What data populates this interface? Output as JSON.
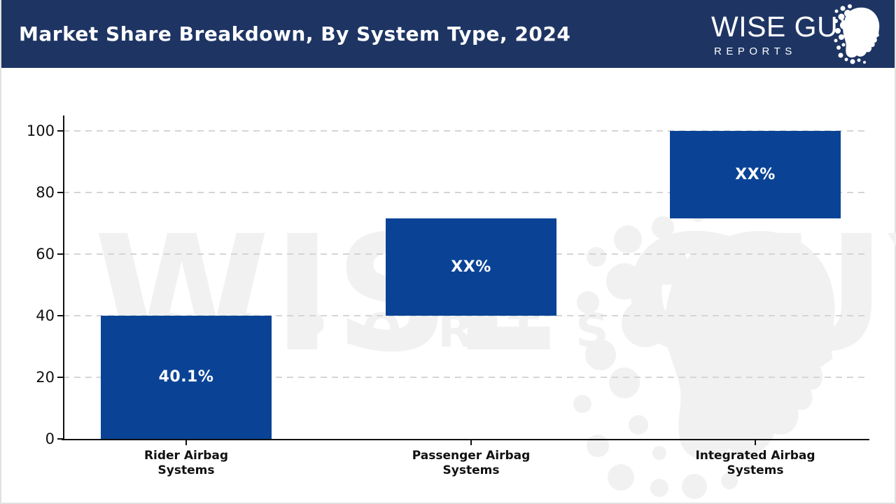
{
  "header": {
    "title": "Market Share Breakdown, By System Type, 2024",
    "logo": {
      "line1": "WISE GUY",
      "line2": "R E P O R T S"
    }
  },
  "watermark": {
    "line1": "WISE GUY",
    "line2": "REPORTS"
  },
  "colors": {
    "header_bg": "#1e3564",
    "bar": "#0a4396",
    "bar_label": "#ffffff",
    "grid": "#d5d5d5",
    "axis": "#111111",
    "watermark": "#f1f1f1",
    "logo_text": "#ffffff"
  },
  "chart_data": {
    "type": "bar",
    "subtype": "waterfall",
    "title": "Market Share Breakdown, By System Type, 2024",
    "categories": [
      "Rider Airbag\nSystems",
      "Passenger Airbag\nSystems",
      "Integrated Airbag\nSystems"
    ],
    "segments": [
      {
        "category": "Rider Airbag Systems",
        "start": 0,
        "end": 40.1,
        "label": "40.1%"
      },
      {
        "category": "Passenger Airbag Systems",
        "start": 40.1,
        "end": 71.5,
        "label": "XX%"
      },
      {
        "category": "Integrated Airbag Systems",
        "start": 71.5,
        "end": 100,
        "label": "XX%"
      }
    ],
    "yticks": [
      0,
      20,
      40,
      60,
      80,
      100
    ],
    "ylim": [
      0,
      105
    ],
    "xlabel": "",
    "ylabel": "",
    "grid": "dashed-horizontal",
    "legend": "none"
  }
}
